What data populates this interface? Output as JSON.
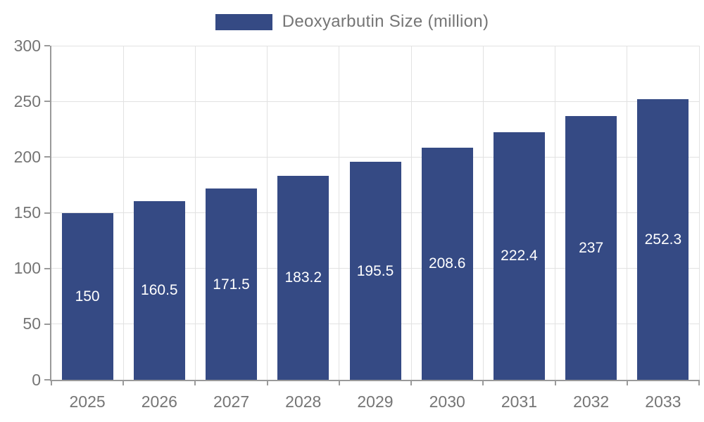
{
  "legend": {
    "label": "Deoxyarbutin Size (million)"
  },
  "chart_data": {
    "type": "bar",
    "title": "Deoxyarbutin Size (million)",
    "categories": [
      "2025",
      "2026",
      "2027",
      "2028",
      "2029",
      "2030",
      "2031",
      "2032",
      "2033"
    ],
    "values": [
      150,
      160.5,
      171.5,
      183.2,
      195.5,
      208.6,
      222.4,
      237,
      252.3
    ],
    "xlabel": "",
    "ylabel": "",
    "ylim": [
      0,
      300
    ],
    "yticks": [
      0,
      50,
      100,
      150,
      200,
      250,
      300
    ],
    "grid": true,
    "legend_position": "top",
    "value_labels": "inside-center",
    "colors": {
      "bar": "#354a84",
      "value_label": "#ffffff",
      "axis_text": "#757575",
      "axis_line": "#9a9a9a",
      "grid_line": "#e2e2e2",
      "background": "#ffffff"
    }
  }
}
